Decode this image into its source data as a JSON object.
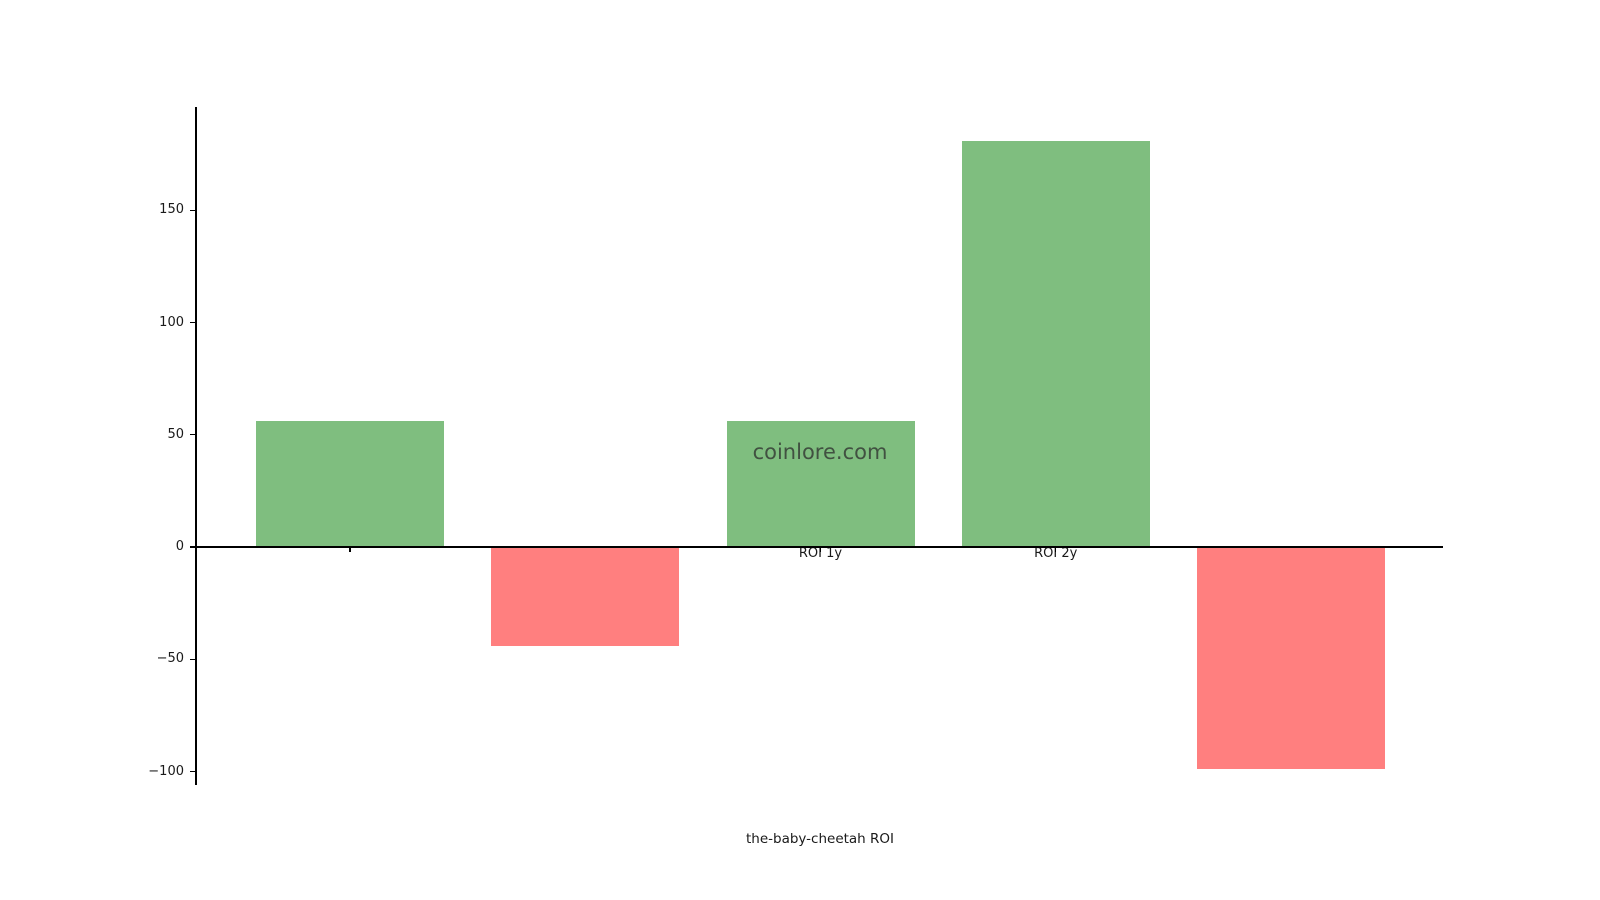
{
  "watermark": {
    "text": "coinlore.com"
  },
  "chart_data": {
    "type": "bar",
    "title": "the-baby-cheetah ROI",
    "title_position": "bottom-center",
    "categories": [
      "",
      "",
      "ROI 1y",
      "ROI 2y",
      ""
    ],
    "values": [
      56,
      -44,
      56,
      181,
      -99
    ],
    "y_ticks": [
      {
        "value": 150,
        "label": "150"
      },
      {
        "value": 100,
        "label": "100"
      },
      {
        "value": 50,
        "label": "50"
      },
      {
        "value": 0,
        "label": "0"
      },
      {
        "value": -50,
        "label": "−50"
      },
      {
        "value": -100,
        "label": "−100"
      }
    ],
    "x_ticks": [
      {
        "category_index": 0,
        "label": ""
      },
      {
        "category_index": 2,
        "label": "ROI 1y"
      },
      {
        "category_index": 3,
        "label": "ROI 2y"
      }
    ],
    "ylim": [
      -106,
      196
    ],
    "xlabel": "",
    "ylabel": "",
    "grid": false,
    "legend_position": "none",
    "colors": {
      "positive_bar": "#7fbe7f",
      "negative_bar": "#ff7f7f",
      "axis": "#000000",
      "tick_label": "#1a1a1a",
      "watermark_text": "#2d2d2d"
    }
  }
}
